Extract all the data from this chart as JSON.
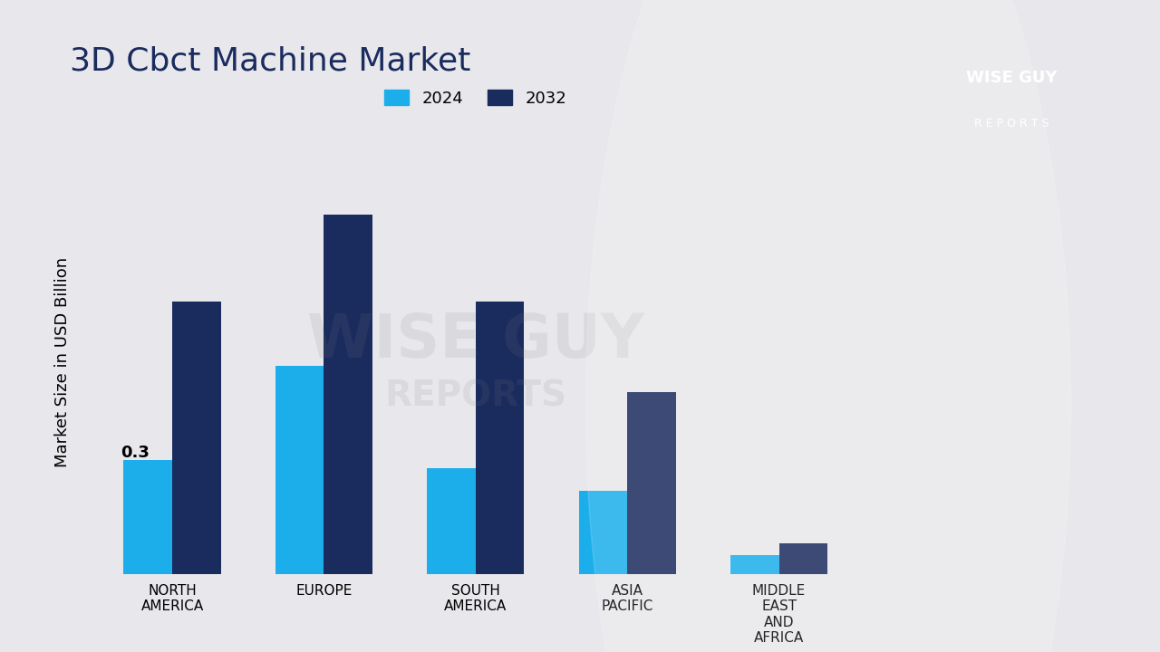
{
  "title": "3D Cbct Machine Market",
  "ylabel": "Market Size in USD Billion",
  "categories": [
    "NORTH\nAMERICA",
    "EUROPE",
    "SOUTH\nAMERICA",
    "ASIA\nPACIFIC",
    "MIDDLE\nEAST\nAND\nAFRICA"
  ],
  "values_2024": [
    0.3,
    0.55,
    0.28,
    0.22,
    0.05
  ],
  "values_2032": [
    0.72,
    0.95,
    0.72,
    0.48,
    0.08
  ],
  "color_2024": "#1BAEEA",
  "color_2032": "#1A2B5E",
  "background_color": "#E8E8EC",
  "right_panel_color": "#1A2B5E",
  "title_color": "#1A2B5E",
  "legend_labels": [
    "2024",
    "2032"
  ],
  "annotation_text": "0.3",
  "bar_width": 0.32,
  "title_fontsize": 26,
  "legend_fontsize": 13,
  "tick_fontsize": 11,
  "ylabel_fontsize": 13
}
